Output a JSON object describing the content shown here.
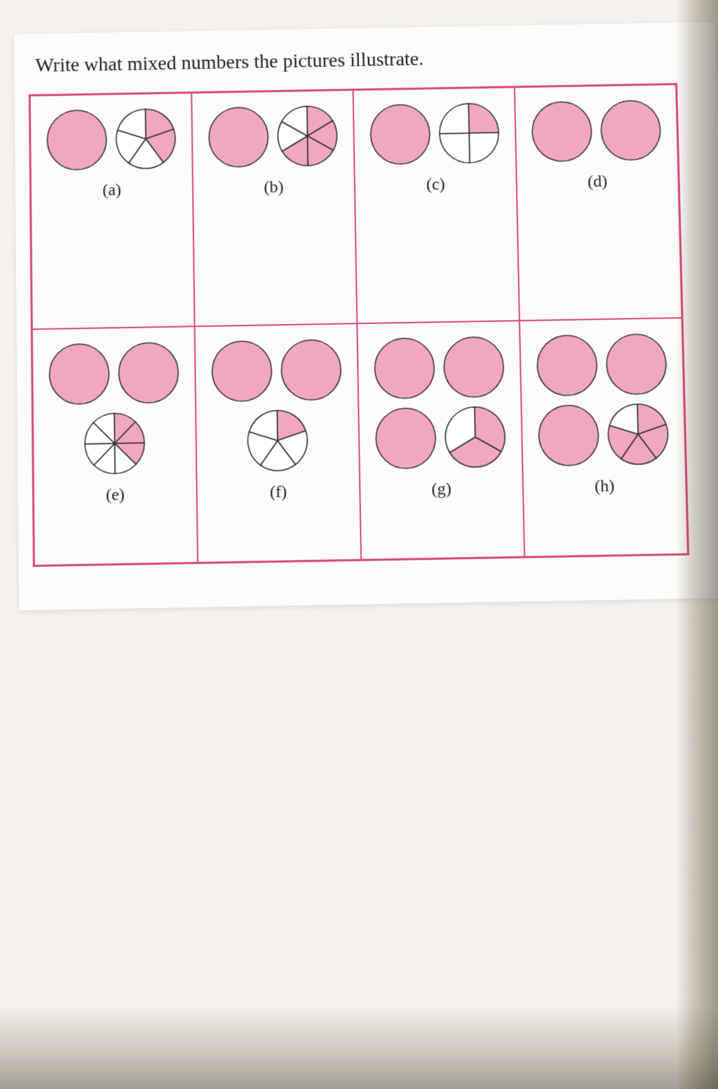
{
  "title": "Write what mixed numbers the pictures illustrate.",
  "colors": {
    "fill": "#f2a7c0",
    "empty": "#ffffff",
    "stroke": "#333333",
    "cellBorder": "#d94a7a"
  },
  "circle_radius": 42,
  "stroke_width": 1.6,
  "cells": [
    {
      "id": "a",
      "label": "(a)",
      "cols": 2,
      "circles": [
        {
          "slices": 1,
          "filled": 1
        },
        {
          "slices": 5,
          "filled": 2
        }
      ]
    },
    {
      "id": "b",
      "label": "(b)",
      "cols": 2,
      "circles": [
        {
          "slices": 1,
          "filled": 1
        },
        {
          "slices": 6,
          "filled": 4
        }
      ]
    },
    {
      "id": "c",
      "label": "(c)",
      "cols": 2,
      "circles": [
        {
          "slices": 1,
          "filled": 1
        },
        {
          "slices": 4,
          "filled": 1
        }
      ]
    },
    {
      "id": "d",
      "label": "(d)",
      "cols": 2,
      "circles": [
        {
          "slices": 1,
          "filled": 1
        },
        {
          "slices": 1,
          "filled": 1
        }
      ]
    },
    {
      "id": "e",
      "label": "(e)",
      "cols": 2,
      "circles": [
        {
          "slices": 1,
          "filled": 1
        },
        {
          "slices": 1,
          "filled": 1
        },
        {
          "slices": 8,
          "filled": 3
        }
      ]
    },
    {
      "id": "f",
      "label": "(f)",
      "cols": 2,
      "circles": [
        {
          "slices": 1,
          "filled": 1
        },
        {
          "slices": 1,
          "filled": 1
        },
        {
          "slices": 5,
          "filled": 1
        }
      ]
    },
    {
      "id": "g",
      "label": "(g)",
      "cols": 2,
      "circles": [
        {
          "slices": 1,
          "filled": 1
        },
        {
          "slices": 1,
          "filled": 1
        },
        {
          "slices": 1,
          "filled": 1
        },
        {
          "slices": 3,
          "filled": 2
        }
      ]
    },
    {
      "id": "h",
      "label": "(h)",
      "cols": 2,
      "circles": [
        {
          "slices": 1,
          "filled": 1
        },
        {
          "slices": 1,
          "filled": 1
        },
        {
          "slices": 1,
          "filled": 1
        },
        {
          "slices": 5,
          "filled": 4
        }
      ]
    }
  ]
}
